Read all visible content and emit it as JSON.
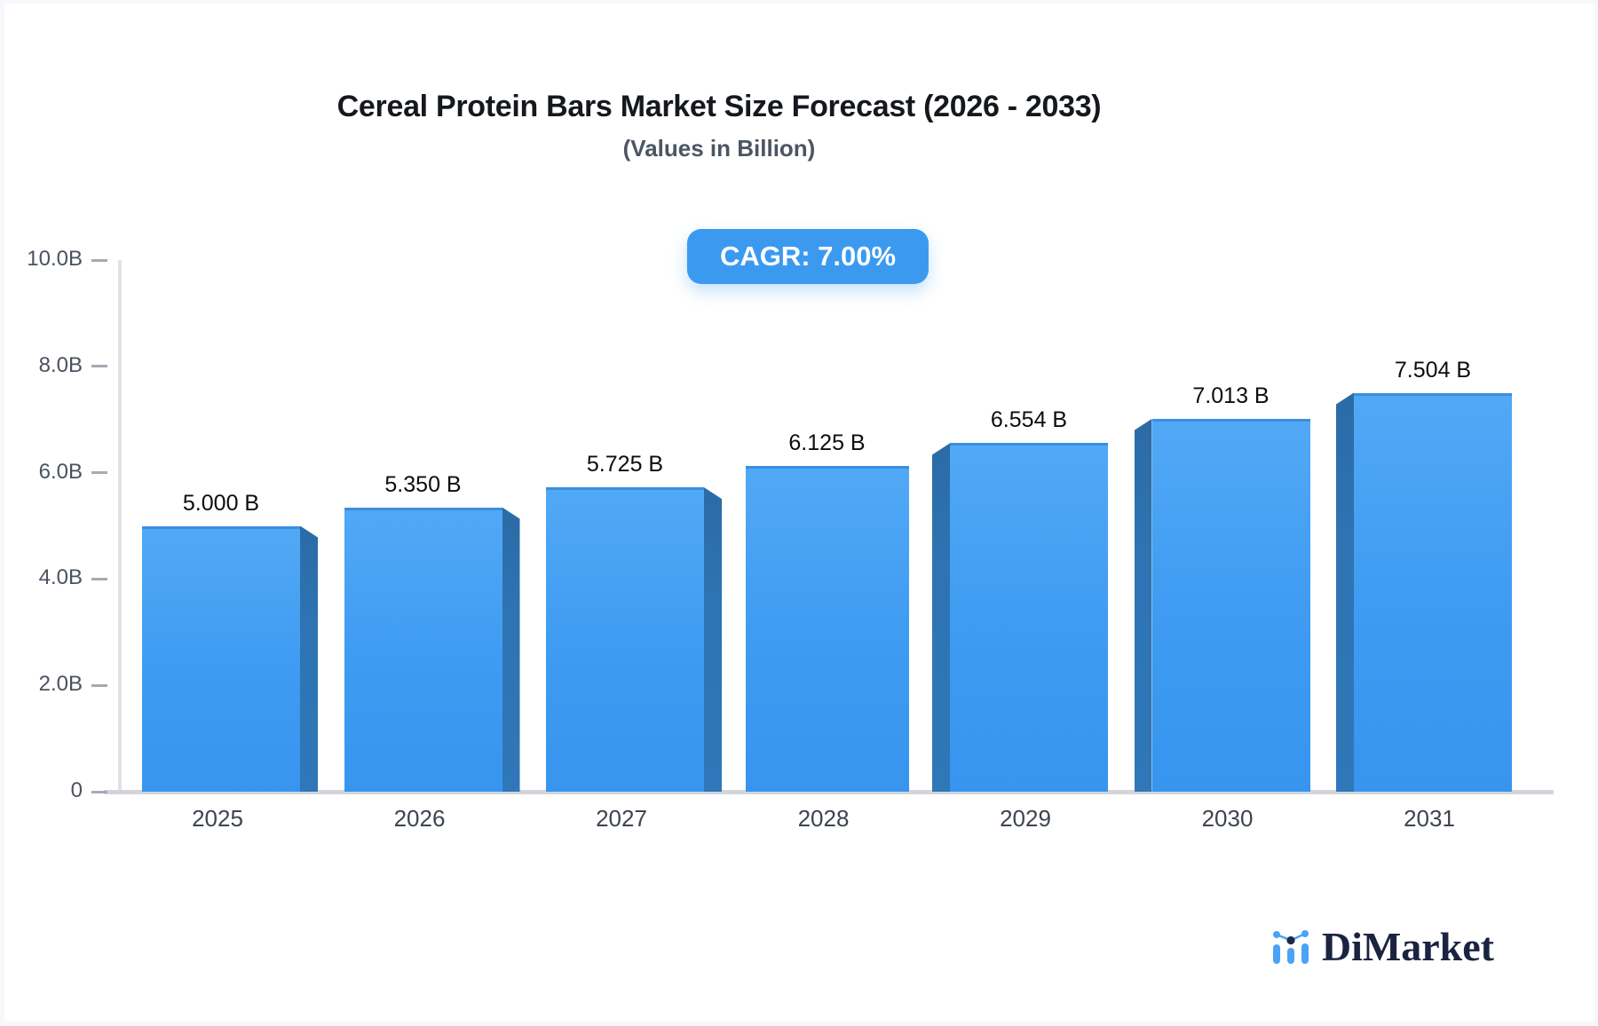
{
  "header": {
    "title": "Cereal Protein Bars Market Size Forecast (2026 - 2033)",
    "subtitle": "(Values in Billion)",
    "cagr_label": "CAGR: 7.00%"
  },
  "chart_data": {
    "type": "bar",
    "title": "Cereal Protein Bars Market Size Forecast (2026 - 2033)",
    "subtitle": "(Values in Billion)",
    "cagr": "7.00%",
    "unit": "Billion (B)",
    "categories": [
      "2025",
      "2026",
      "2027",
      "2028",
      "2029",
      "2030",
      "2031"
    ],
    "values": [
      5.0,
      5.35,
      5.725,
      6.125,
      6.554,
      7.013,
      7.504
    ],
    "value_labels": [
      "5.000 B",
      "5.350 B",
      "5.725 B",
      "6.125 B",
      "6.554 B",
      "7.013 B",
      "7.504 B"
    ],
    "ylim": [
      0,
      10
    ],
    "y_ticks": [
      {
        "value": 0,
        "label": "0"
      },
      {
        "value": 2,
        "label": "2.0B"
      },
      {
        "value": 4,
        "label": "4.0B"
      },
      {
        "value": 6,
        "label": "6.0B"
      },
      {
        "value": 8,
        "label": "8.0B"
      },
      {
        "value": 10,
        "label": "10.0B"
      }
    ],
    "grid": false,
    "legend": false,
    "bar_color": "#3f9df2",
    "bar_side_color": "#2e74b4"
  },
  "branding": {
    "logo_text": "DiMarket",
    "logo_icon": "mini-bar-chart-icon",
    "logo_text_color": "#1a2340",
    "logo_icon_color": "#4aa3f7",
    "logo_icon_accent_color": "#1e2a44"
  },
  "colors": {
    "page_bg": "#f7f8fb",
    "card_bg": "#ffffff",
    "badge_bg": "#3b9af0",
    "badge_text": "#ffffff",
    "title_text": "#15181d",
    "subtitle_text": "#4c5562",
    "axis_text": "#4a525f"
  }
}
